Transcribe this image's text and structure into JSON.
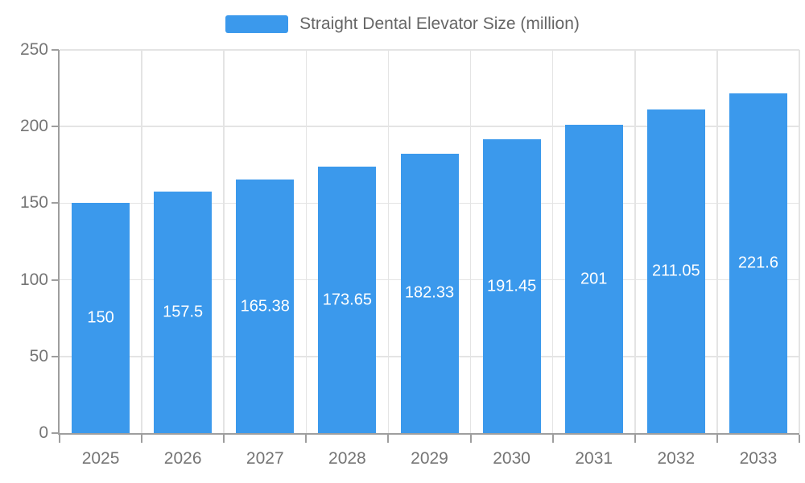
{
  "chart_data": {
    "type": "bar",
    "title": "",
    "legend": "Straight Dental Elevator Size (million)",
    "categories": [
      "2025",
      "2026",
      "2027",
      "2028",
      "2029",
      "2030",
      "2031",
      "2032",
      "2033"
    ],
    "values": [
      150,
      157.5,
      165.38,
      173.65,
      182.33,
      191.45,
      201,
      211.05,
      221.6
    ],
    "value_labels": [
      "150",
      "157.5",
      "165.38",
      "173.65",
      "182.33",
      "191.45",
      "201",
      "211.05",
      "221.6"
    ],
    "ylim": [
      0,
      250
    ],
    "yticks": [
      0,
      50,
      100,
      150,
      200,
      250
    ],
    "ytick_labels": [
      "0",
      "50",
      "100",
      "150",
      "200",
      "250"
    ],
    "grid": true,
    "legend_position": "top",
    "colors": {
      "bar": "#3b99ec",
      "grid": "#e4e4e4",
      "axis": "#9e9e9e",
      "axis_label": "#757575",
      "legend_text": "#666666",
      "value_label": "#ffffff",
      "background": "#ffffff"
    }
  }
}
